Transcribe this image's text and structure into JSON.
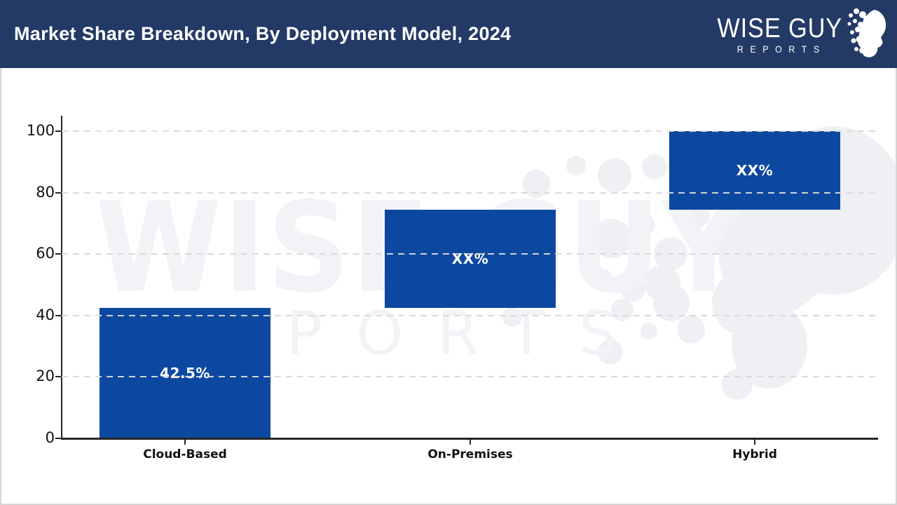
{
  "header": {
    "title": "Market Share Breakdown, By Deployment Model, 2024",
    "bg_color": "#243a66",
    "logo": {
      "line1": "WISE GUY",
      "line2": "REPORTS"
    }
  },
  "watermark": {
    "line1": "WISE GUY",
    "line2": "REPORTS"
  },
  "chart_data": {
    "type": "bar",
    "subtype": "floating-segment-waterfall",
    "title": "Market Share Breakdown, By Deployment Model, 2024",
    "categories": [
      "Cloud-Based",
      "On-Premises",
      "Hybrid"
    ],
    "series": [
      {
        "name": "Market share (%)",
        "segments": [
          {
            "category": "Cloud-Based",
            "start": 0,
            "end": 42.5,
            "label": "42.5%"
          },
          {
            "category": "On-Premises",
            "start": 42.5,
            "end": 74.4,
            "label": "XX%"
          },
          {
            "category": "Hybrid",
            "start": 74.4,
            "end": 100,
            "label": "XX%"
          }
        ]
      }
    ],
    "yticks": [
      0,
      20,
      40,
      60,
      80,
      100
    ],
    "ylim": [
      0,
      100
    ],
    "xlabel": "",
    "ylabel": "",
    "grid": "horizontal-dashed",
    "legend": "none",
    "bar_color": "#0c48a0",
    "value_label_color": "#ffffff",
    "axis_color": "#262626",
    "grid_color": "#d9d9d9"
  }
}
